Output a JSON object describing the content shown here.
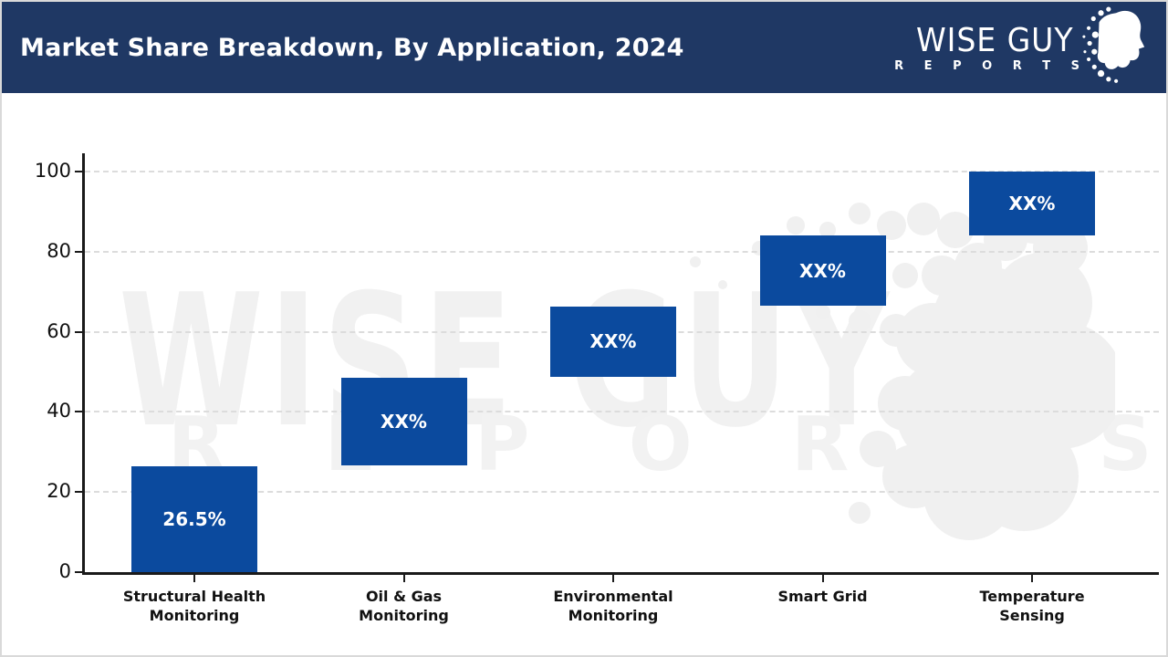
{
  "header": {
    "title": "Market Share Breakdown, By Application, 2024",
    "bg_color": "#1F3864",
    "logo": {
      "line1": "WISE GUY",
      "line2": "R E P O R T S"
    }
  },
  "watermark": {
    "line1": "WISE GUY",
    "line2": "R E P O R T S"
  },
  "chart_data": {
    "type": "bar",
    "subtype": "floating-segment-waterfall",
    "title": "Market Share Breakdown, By Application, 2024",
    "xlabel": "",
    "ylabel": "",
    "ylim": [
      0,
      105
    ],
    "yticks": [
      0,
      20,
      40,
      60,
      80,
      100
    ],
    "grid": "horizontal-dashed",
    "legend": "none",
    "bar_color": "#0B4A9E",
    "bar_label_color": "#ffffff",
    "bars": [
      {
        "category": "Structural Health Monitoring",
        "category_lines": [
          "Structural Health",
          "Monitoring"
        ],
        "start": 0,
        "end": 26.5,
        "label": "26.5%"
      },
      {
        "category": "Oil & Gas Monitoring",
        "category_lines": [
          "Oil & Gas",
          "Monitoring"
        ],
        "start": 26.7,
        "end": 48.6,
        "label": "XX%"
      },
      {
        "category": "Environmental Monitoring",
        "category_lines": [
          "Environmental",
          "Monitoring"
        ],
        "start": 48.8,
        "end": 66.3,
        "label": "XX%"
      },
      {
        "category": "Smart Grid",
        "category_lines": [
          "Smart Grid"
        ],
        "start": 66.5,
        "end": 84.0,
        "label": "XX%"
      },
      {
        "category": "Temperature Sensing",
        "category_lines": [
          "Temperature",
          "Sensing"
        ],
        "start": 84.1,
        "end": 100,
        "label": "XX%"
      }
    ]
  }
}
